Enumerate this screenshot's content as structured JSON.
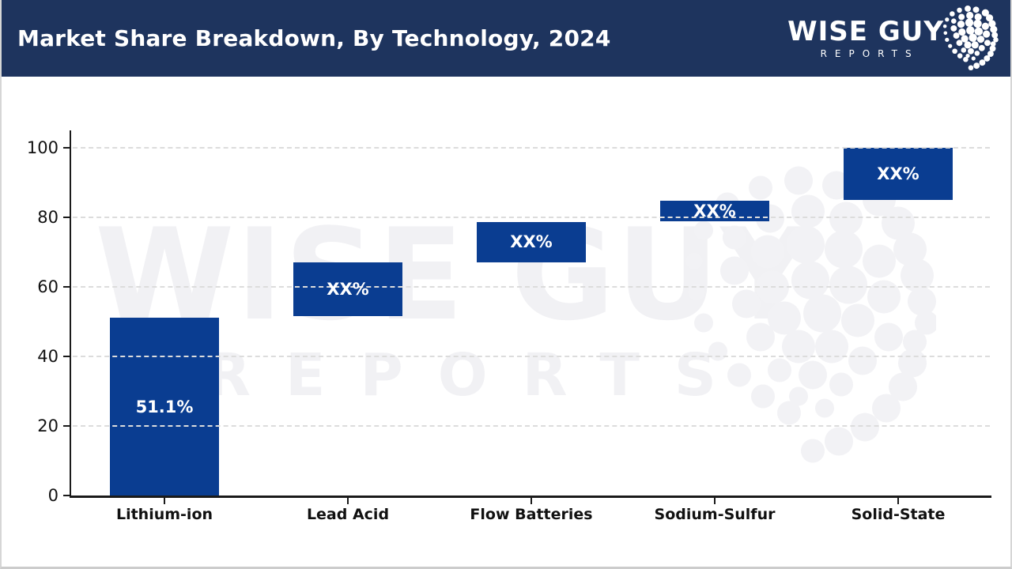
{
  "header": {
    "title": "Market Share Breakdown, By Technology, 2024",
    "logo": {
      "wordmark": "WISE GUY",
      "subtext": "REPORTS"
    }
  },
  "watermark": {
    "line1": "WISE GUY",
    "line2": "REPORTS"
  },
  "chart_data": {
    "type": "bar",
    "subtype": "waterfall-style floating segment bars",
    "title": "Market Share Breakdown, By Technology, 2024",
    "categories": [
      "Lithium-ion",
      "Lead Acid",
      "Flow Batteries",
      "Sodium-Sulfur",
      "Solid-State"
    ],
    "segments": [
      {
        "category": "Lithium-ion",
        "start": 0,
        "end": 51.1,
        "label": "51.1%"
      },
      {
        "category": "Lead Acid",
        "start": 51.6,
        "end": 67.1,
        "label": "XX%"
      },
      {
        "category": "Flow Batteries",
        "start": 67.1,
        "end": 78.6,
        "label": "XX%"
      },
      {
        "category": "Sodium-Sulfur",
        "start": 78.9,
        "end": 84.8,
        "label": "XX%"
      },
      {
        "category": "Solid-State",
        "start": 85.0,
        "end": 100.0,
        "label": "XX%"
      }
    ],
    "xlabel": "",
    "ylabel": "",
    "ylim": [
      0,
      100
    ],
    "yticks": [
      0,
      20,
      40,
      60,
      80,
      100
    ],
    "grid": "horizontal dashed",
    "legend": "none",
    "bar_color": "#0a3d91",
    "bar_label_color": "#ffffff",
    "axis_color": "#1a1a1a",
    "grid_color": "#dcdcdc"
  },
  "colors": {
    "header_bg": "#1e345e",
    "page_bg": "#ffffff",
    "watermark": "#f1f1f4"
  }
}
